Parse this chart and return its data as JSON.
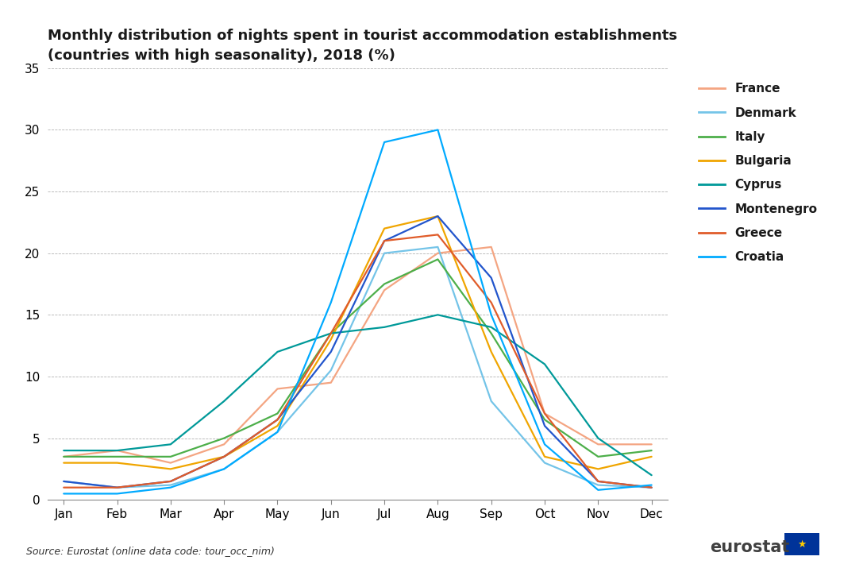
{
  "title_line1": "Monthly distribution of nights spent in tourist accommodation establishments",
  "title_line2": "(countries with high seasonality), 2018 (%)",
  "months": [
    "Jan",
    "Feb",
    "Mar",
    "Apr",
    "May",
    "Jun",
    "Jul",
    "Aug",
    "Sep",
    "Oct",
    "Nov",
    "Dec"
  ],
  "series": {
    "France": [
      3.5,
      4.0,
      3.0,
      4.5,
      9.0,
      9.5,
      17.0,
      20.0,
      20.5,
      7.0,
      4.5,
      4.5
    ],
    "Denmark": [
      1.5,
      1.0,
      1.2,
      2.5,
      5.5,
      10.5,
      20.0,
      20.5,
      8.0,
      3.0,
      1.2,
      1.0
    ],
    "Italy": [
      3.5,
      3.5,
      3.5,
      5.0,
      7.0,
      13.5,
      17.5,
      19.5,
      13.5,
      6.5,
      3.5,
      4.0
    ],
    "Bulgaria": [
      3.0,
      3.0,
      2.5,
      3.5,
      6.0,
      13.0,
      22.0,
      23.0,
      12.0,
      3.5,
      2.5,
      3.5
    ],
    "Cyprus": [
      4.0,
      4.0,
      4.5,
      8.0,
      12.0,
      13.5,
      14.0,
      15.0,
      14.0,
      11.0,
      5.0,
      2.0
    ],
    "Montenegro": [
      1.5,
      1.0,
      1.5,
      3.5,
      6.5,
      12.0,
      21.0,
      23.0,
      18.0,
      6.0,
      1.5,
      1.0
    ],
    "Greece": [
      1.0,
      1.0,
      1.5,
      3.5,
      6.5,
      13.5,
      21.0,
      21.5,
      16.0,
      7.0,
      1.5,
      1.0
    ],
    "Croatia": [
      0.5,
      0.5,
      1.0,
      2.5,
      5.5,
      16.0,
      29.0,
      30.0,
      15.0,
      4.5,
      0.8,
      1.2
    ]
  },
  "colors": {
    "France": "#f4a582",
    "Denmark": "#74c4e8",
    "Italy": "#4daf4a",
    "Bulgaria": "#f0a500",
    "Cyprus": "#009999",
    "Montenegro": "#2255cc",
    "Greece": "#e05c2a",
    "Croatia": "#00aaff"
  },
  "ylim": [
    0,
    35
  ],
  "yticks": [
    0,
    5,
    10,
    15,
    20,
    25,
    30,
    35
  ],
  "source_text": "Source: Eurostat (online data code: tour_occ_nim)",
  "background_color": "#ffffff",
  "grid_color": "#aaaaaa",
  "title_fontsize": 13,
  "tick_fontsize": 11,
  "legend_fontsize": 11
}
